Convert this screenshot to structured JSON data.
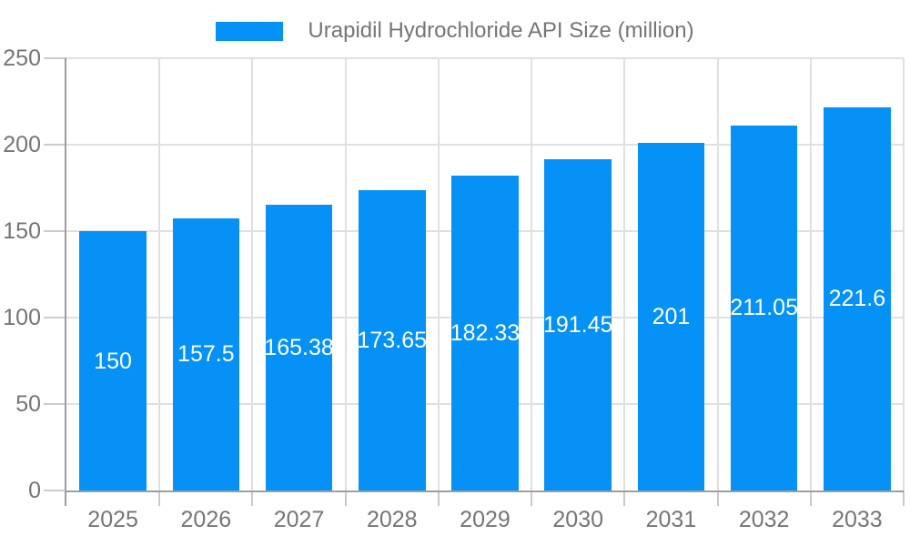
{
  "chart_data": {
    "type": "bar",
    "title": "Urapidil Hydrochloride API Size (million)",
    "categories": [
      "2025",
      "2026",
      "2027",
      "2028",
      "2029",
      "2030",
      "2031",
      "2032",
      "2033"
    ],
    "values": [
      150,
      157.5,
      165.38,
      173.65,
      182.33,
      191.45,
      201,
      211.05,
      221.6
    ],
    "value_labels": [
      "150",
      "157.5",
      "165.38",
      "173.65",
      "182.33",
      "191.45",
      "201",
      "211.05",
      "221.6"
    ],
    "xlabel": "",
    "ylabel": "",
    "ylim": [
      0,
      250
    ],
    "ytick_step": 50,
    "ytick_labels": [
      "0",
      "50",
      "100",
      "150",
      "200",
      "250"
    ],
    "grid": true,
    "legend_position": "top-center",
    "colors": {
      "bar": "#0591f5",
      "value_label": "#ffffff",
      "axis_text": "#757575",
      "legend_text": "#757575",
      "gridline": "#e0e0e0",
      "axis_line": "#9e9e9e",
      "tick": "#cccccc",
      "background": "#ffffff"
    }
  }
}
